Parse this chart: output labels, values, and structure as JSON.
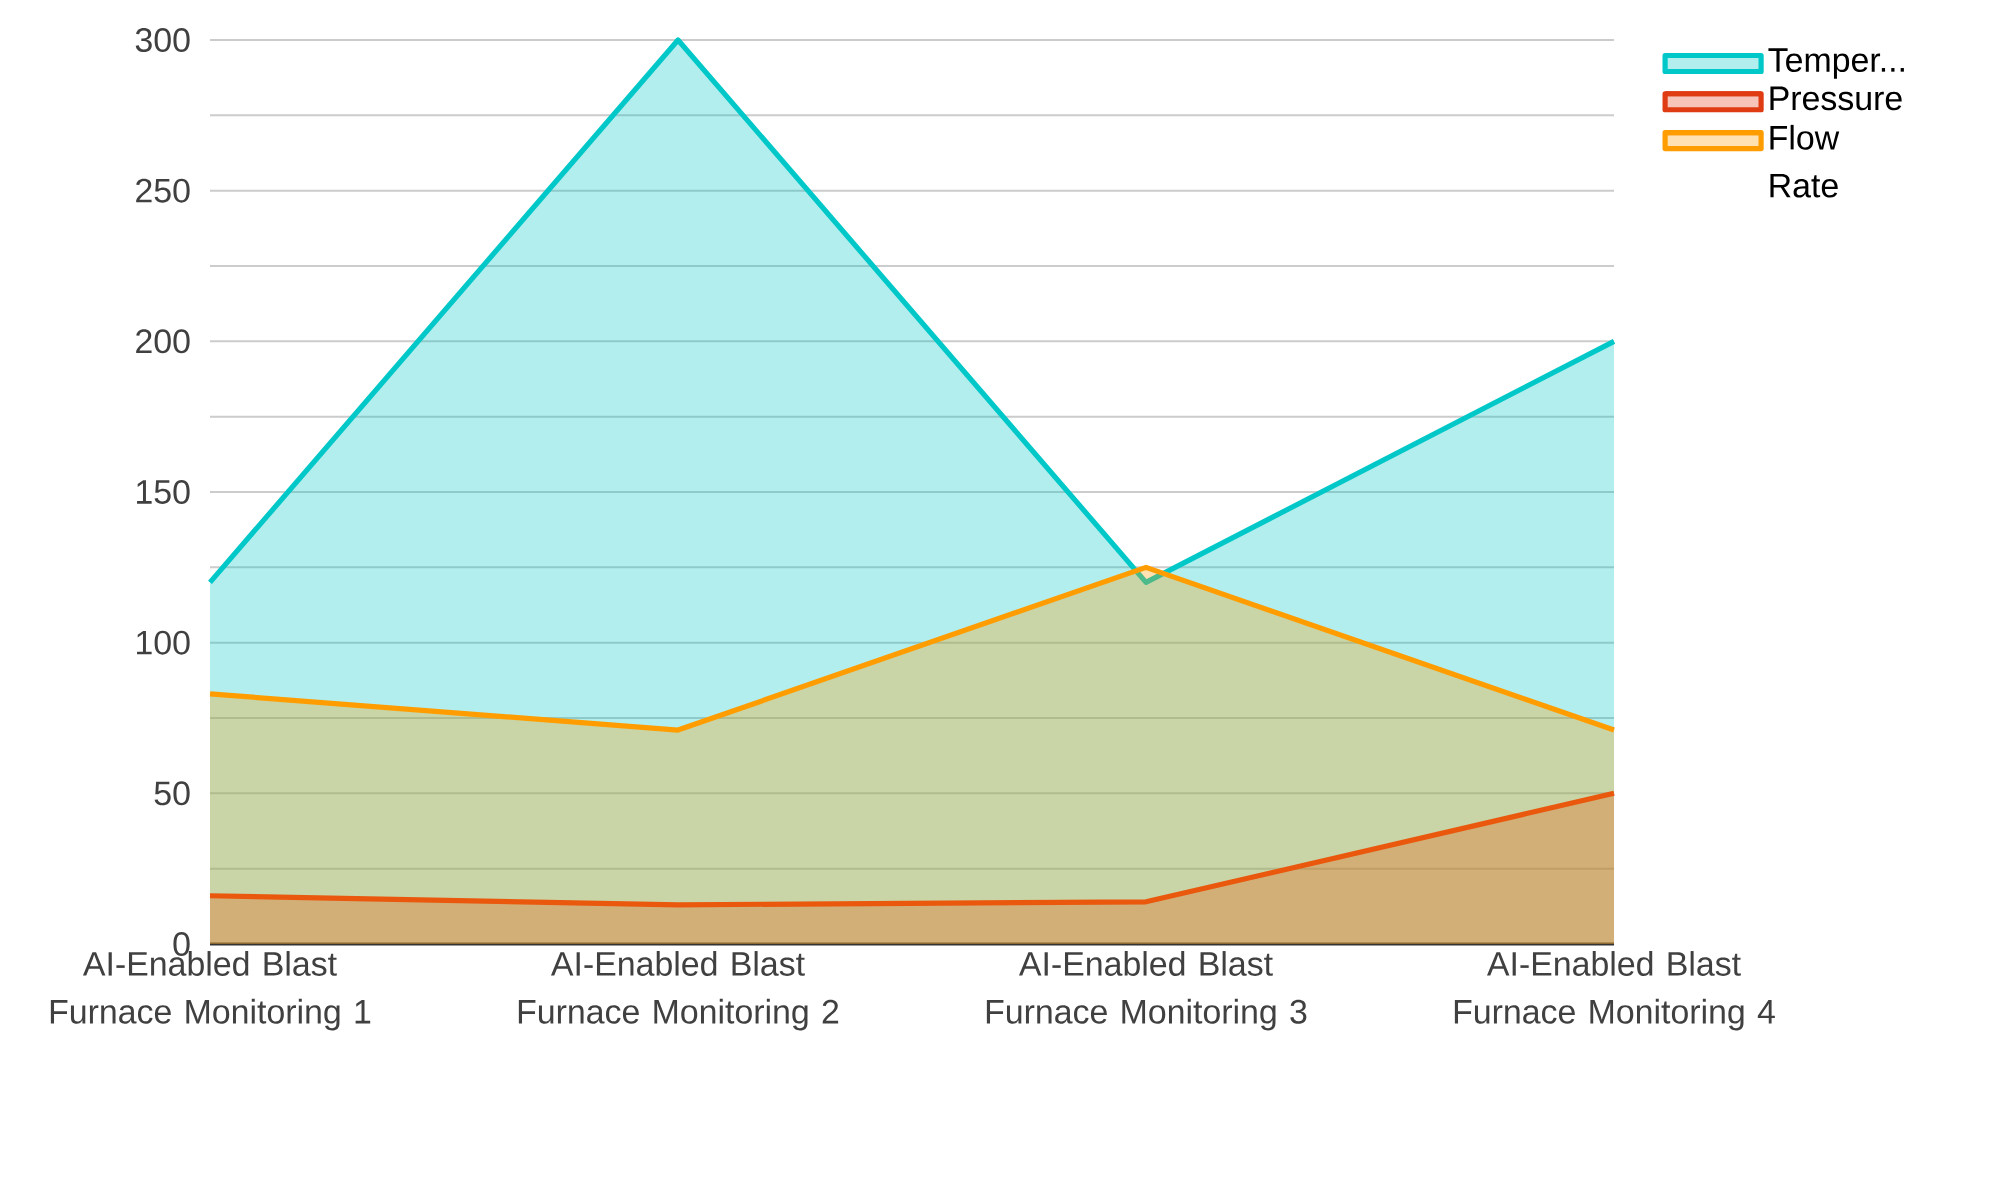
{
  "chart_data": {
    "type": "area",
    "categories": [
      "AI-Enabled Blast Furnace Monitoring 1",
      "AI-Enabled Blast Furnace Monitoring 2",
      "AI-Enabled Blast Furnace Monitoring 3",
      "AI-Enabled Blast Furnace Monitoring 4"
    ],
    "series": [
      {
        "name": "Temper...",
        "color": "#00c8c8",
        "values": [
          120,
          300,
          120,
          200
        ]
      },
      {
        "name": "Pressure",
        "color": "#e03c14",
        "values": [
          16,
          13,
          14,
          50
        ]
      },
      {
        "name": "Flow Rate",
        "color": "#ff9d00",
        "values": [
          83,
          71,
          125,
          71
        ]
      }
    ],
    "ylim": [
      0,
      300
    ],
    "yticks": [
      0,
      {
        "value": 25,
        "label": null
      },
      50,
      {
        "value": 75,
        "label": null
      },
      100,
      {
        "value": 125,
        "label": null
      },
      150,
      {
        "value": 175,
        "label": null
      },
      200,
      {
        "value": 225,
        "label": null
      },
      250,
      {
        "value": 275,
        "label": null
      },
      300
    ],
    "grid": "y",
    "legend": "top right"
  }
}
